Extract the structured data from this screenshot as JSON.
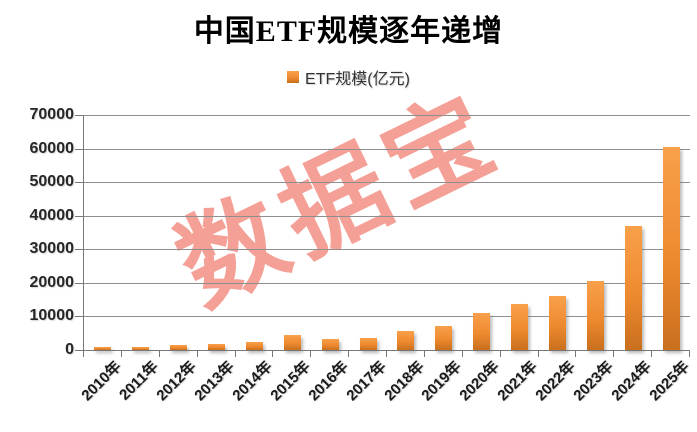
{
  "title": "中国ETF规模逐年递增",
  "legend": {
    "label": "ETF规模(亿元)",
    "marker_color_top": "#F8A04B",
    "marker_color_bottom": "#C96F1E"
  },
  "watermark": {
    "text": "数据宝",
    "color": "#F5A096"
  },
  "colors": {
    "background": "#FFFFFF",
    "bar_top": "#F8A04B",
    "bar_bottom": "#C96F1E",
    "gridline": "#8F8F8F",
    "axis": "#787878",
    "title_text": "#000000",
    "axis_text": "#262626"
  },
  "chart_data": {
    "type": "bar",
    "title": "中国ETF规模逐年递增",
    "xlabel": "",
    "ylabel": "",
    "legend_position": "top",
    "grid": true,
    "x_tick_label_rotation": 45,
    "ylim": [
      0,
      70000
    ],
    "ytick_interval": 10000,
    "ytick_labels": [
      "70000",
      "60000",
      "50000",
      "40000",
      "30000",
      "20000",
      "10000",
      "0"
    ],
    "categories": [
      "2010年",
      "2011年",
      "2012年",
      "2013年",
      "2014年",
      "2015年",
      "2016年",
      "2017年",
      "2018年",
      "2019年",
      "2020年",
      "2021年",
      "2022年",
      "2023年",
      "2024年",
      "2025年"
    ],
    "series": [
      {
        "name": "ETF规模(亿元)",
        "values": [
          800,
          800,
          1500,
          1800,
          2300,
          4500,
          3400,
          3500,
          5700,
          7300,
          11000,
          13800,
          16100,
          20500,
          37000,
          60400
        ]
      }
    ]
  }
}
